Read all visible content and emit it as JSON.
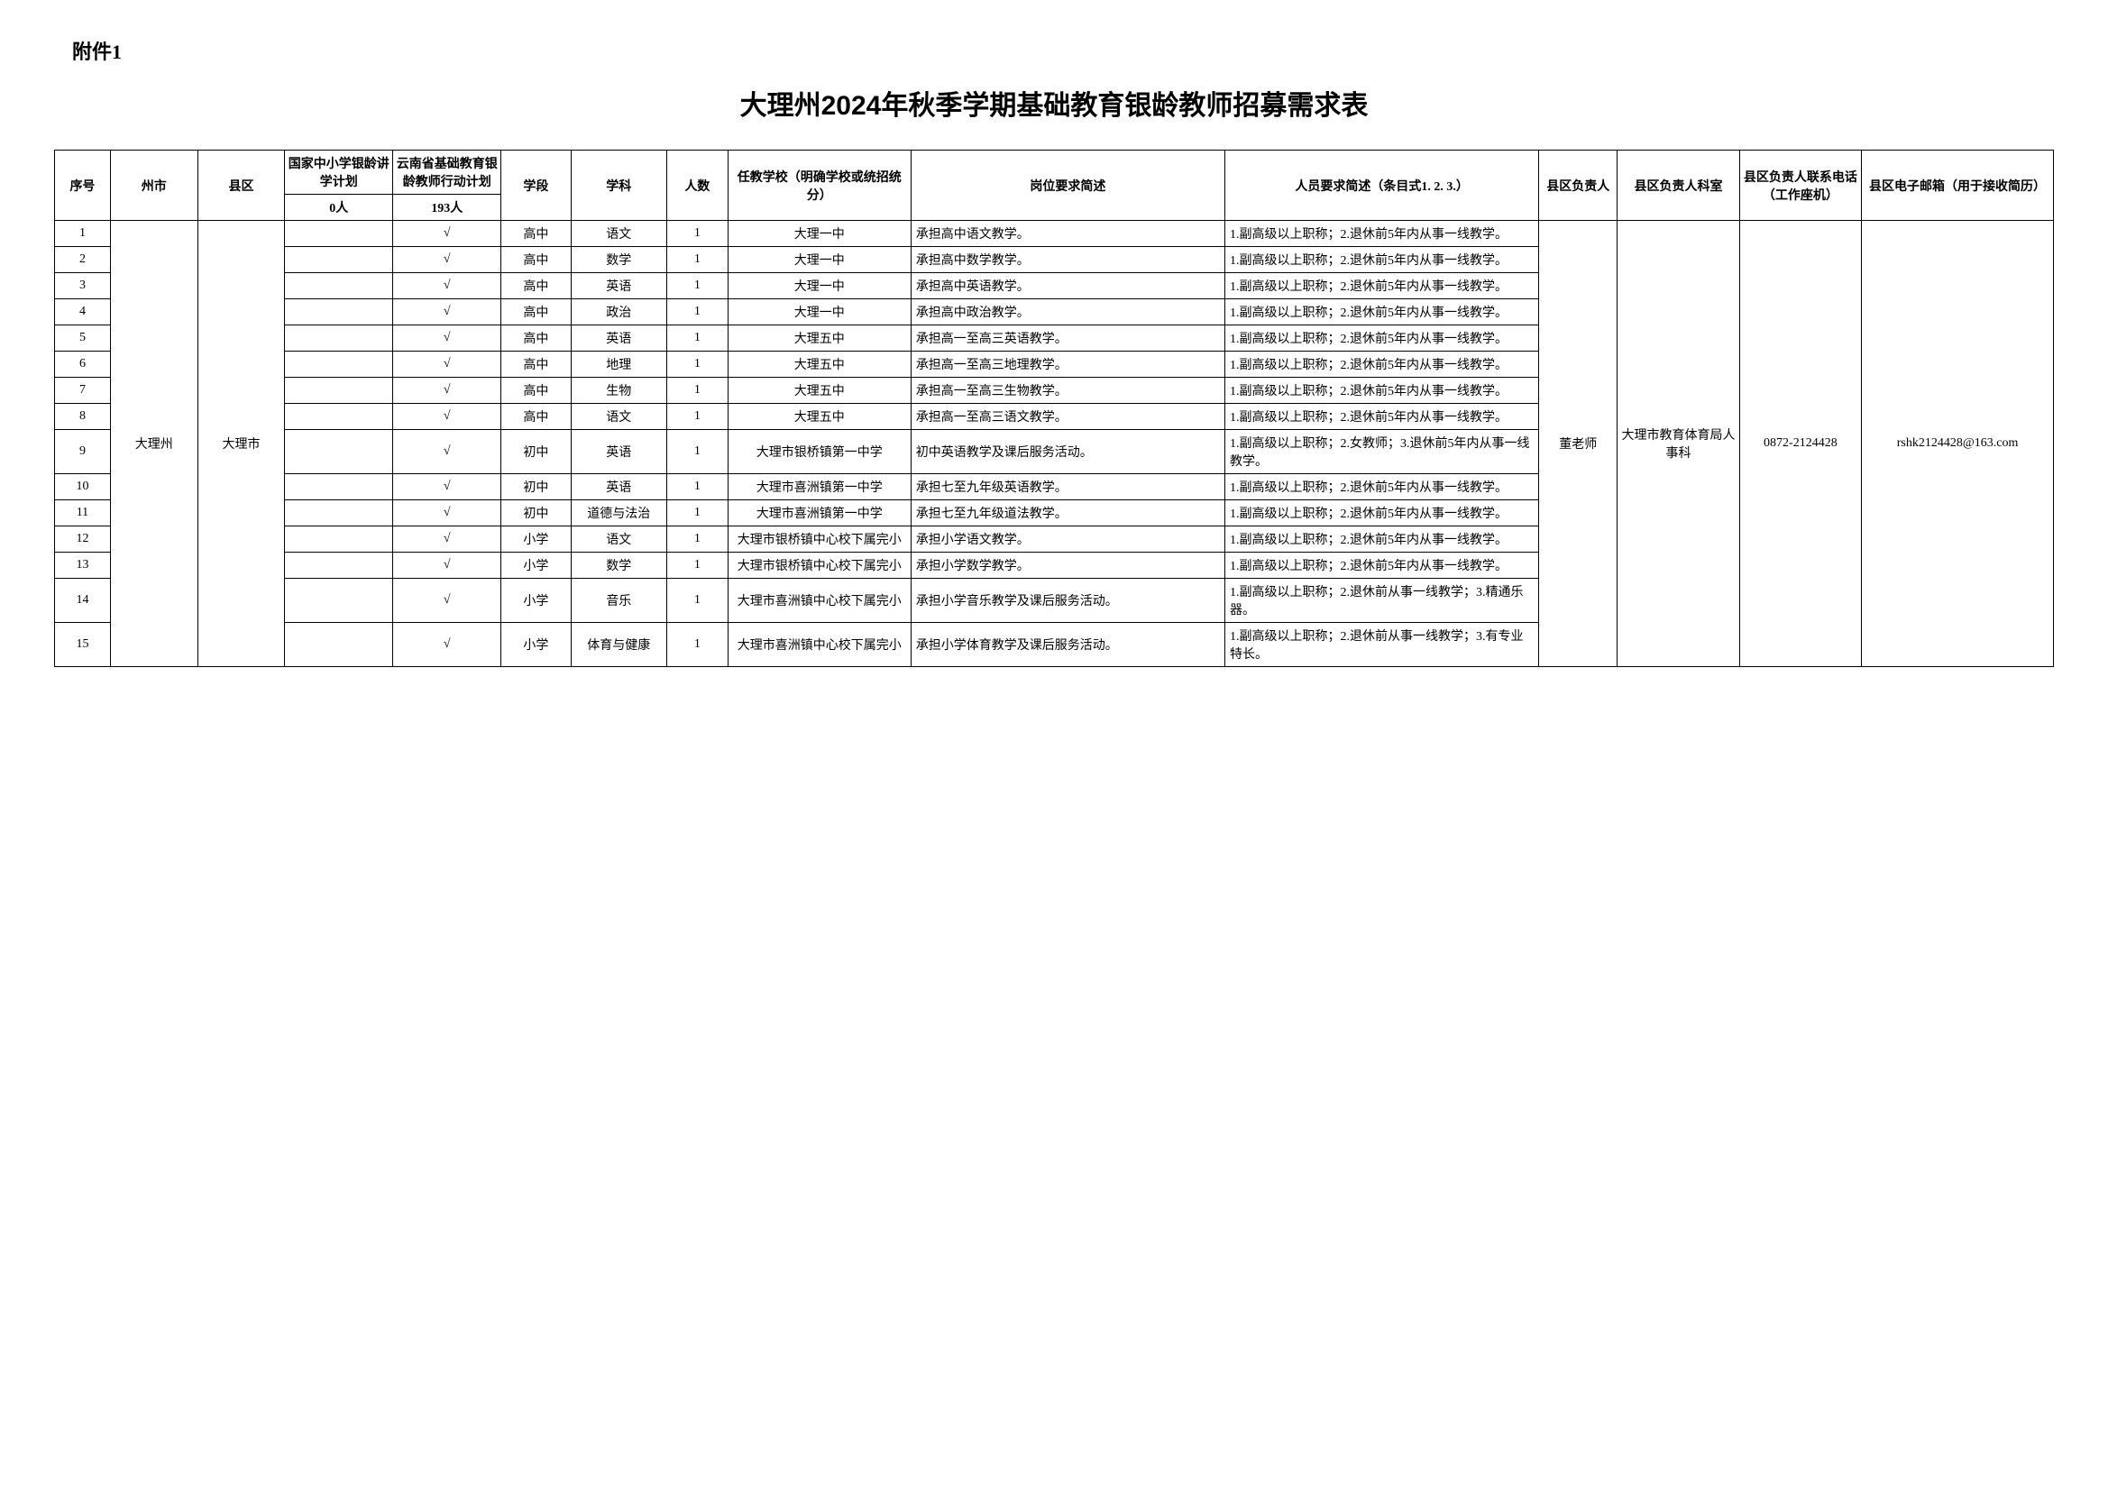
{
  "attachment_label": "附件1",
  "title": "大理州2024年秋季学期基础教育银龄教师招募需求表",
  "columns": {
    "seq": "序号",
    "city": "州市",
    "county": "县区",
    "plan1_top": "国家中小学银龄讲学计划",
    "plan1_bottom": "0人",
    "plan2_top": "云南省基础教育银龄教师行动计划",
    "plan2_bottom": "193人",
    "stage": "学段",
    "subject": "学科",
    "num": "人数",
    "school": "任教学校（明确学校或统招统分）",
    "post": "岗位要求简述",
    "person": "人员要求简述（条目式1. 2. 3.）",
    "resp": "县区负责人",
    "dept": "县区负责人科室",
    "tel": "县区负责人联系电话（工作座机）",
    "email": "县区电子邮箱（用于接收简历）"
  },
  "merged": {
    "city": "大理州",
    "county": "大理市",
    "resp": "董老师",
    "dept": "大理市教育体育局人事科",
    "tel": "0872-2124428",
    "email": "rshk2124428@163.com"
  },
  "rows": [
    {
      "seq": "1",
      "plan1": "",
      "plan2": "√",
      "stage": "高中",
      "subject": "语文",
      "num": "1",
      "school": "大理一中",
      "post": "承担高中语文教学。",
      "person": "1.副高级以上职称；2.退休前5年内从事一线教学。"
    },
    {
      "seq": "2",
      "plan1": "",
      "plan2": "√",
      "stage": "高中",
      "subject": "数学",
      "num": "1",
      "school": "大理一中",
      "post": "承担高中数学教学。",
      "person": "1.副高级以上职称；2.退休前5年内从事一线教学。"
    },
    {
      "seq": "3",
      "plan1": "",
      "plan2": "√",
      "stage": "高中",
      "subject": "英语",
      "num": "1",
      "school": "大理一中",
      "post": "承担高中英语教学。",
      "person": "1.副高级以上职称；2.退休前5年内从事一线教学。"
    },
    {
      "seq": "4",
      "plan1": "",
      "plan2": "√",
      "stage": "高中",
      "subject": "政治",
      "num": "1",
      "school": "大理一中",
      "post": "承担高中政治教学。",
      "person": "1.副高级以上职称；2.退休前5年内从事一线教学。"
    },
    {
      "seq": "5",
      "plan1": "",
      "plan2": "√",
      "stage": "高中",
      "subject": "英语",
      "num": "1",
      "school": "大理五中",
      "post": "承担高一至高三英语教学。",
      "person": "1.副高级以上职称；2.退休前5年内从事一线教学。"
    },
    {
      "seq": "6",
      "plan1": "",
      "plan2": "√",
      "stage": "高中",
      "subject": "地理",
      "num": "1",
      "school": "大理五中",
      "post": "承担高一至高三地理教学。",
      "person": "1.副高级以上职称；2.退休前5年内从事一线教学。"
    },
    {
      "seq": "7",
      "plan1": "",
      "plan2": "√",
      "stage": "高中",
      "subject": "生物",
      "num": "1",
      "school": "大理五中",
      "post": "承担高一至高三生物教学。",
      "person": "1.副高级以上职称；2.退休前5年内从事一线教学。"
    },
    {
      "seq": "8",
      "plan1": "",
      "plan2": "√",
      "stage": "高中",
      "subject": "语文",
      "num": "1",
      "school": "大理五中",
      "post": "承担高一至高三语文教学。",
      "person": "1.副高级以上职称；2.退休前5年内从事一线教学。"
    },
    {
      "seq": "9",
      "plan1": "",
      "plan2": "√",
      "stage": "初中",
      "subject": "英语",
      "num": "1",
      "school": "大理市银桥镇第一中学",
      "post": "初中英语教学及课后服务活动。",
      "person": "1.副高级以上职称；2.女教师；3.退休前5年内从事一线教学。"
    },
    {
      "seq": "10",
      "plan1": "",
      "plan2": "√",
      "stage": "初中",
      "subject": "英语",
      "num": "1",
      "school": "大理市喜洲镇第一中学",
      "post": "承担七至九年级英语教学。",
      "person": "1.副高级以上职称；2.退休前5年内从事一线教学。"
    },
    {
      "seq": "11",
      "plan1": "",
      "plan2": "√",
      "stage": "初中",
      "subject": "道德与法治",
      "num": "1",
      "school": "大理市喜洲镇第一中学",
      "post": "承担七至九年级道法教学。",
      "person": "1.副高级以上职称；2.退休前5年内从事一线教学。"
    },
    {
      "seq": "12",
      "plan1": "",
      "plan2": "√",
      "stage": "小学",
      "subject": "语文",
      "num": "1",
      "school": "大理市银桥镇中心校下属完小",
      "post": "承担小学语文教学。",
      "person": "1.副高级以上职称；2.退休前5年内从事一线教学。"
    },
    {
      "seq": "13",
      "plan1": "",
      "plan2": "√",
      "stage": "小学",
      "subject": "数学",
      "num": "1",
      "school": "大理市银桥镇中心校下属完小",
      "post": "承担小学数学教学。",
      "person": "1.副高级以上职称；2.退休前5年内从事一线教学。"
    },
    {
      "seq": "14",
      "plan1": "",
      "plan2": "√",
      "stage": "小学",
      "subject": "音乐",
      "num": "1",
      "school": "大理市喜洲镇中心校下属完小",
      "post": "承担小学音乐教学及课后服务活动。",
      "person": "1.副高级以上职称；2.退休前从事一线教学；3.精通乐器。"
    },
    {
      "seq": "15",
      "plan1": "",
      "plan2": "√",
      "stage": "小学",
      "subject": "体育与健康",
      "num": "1",
      "school": "大理市喜洲镇中心校下属完小",
      "post": "承担小学体育教学及课后服务活动。",
      "person": "1.副高级以上职称；2.退休前从事一线教学；3.有专业特长。"
    }
  ]
}
